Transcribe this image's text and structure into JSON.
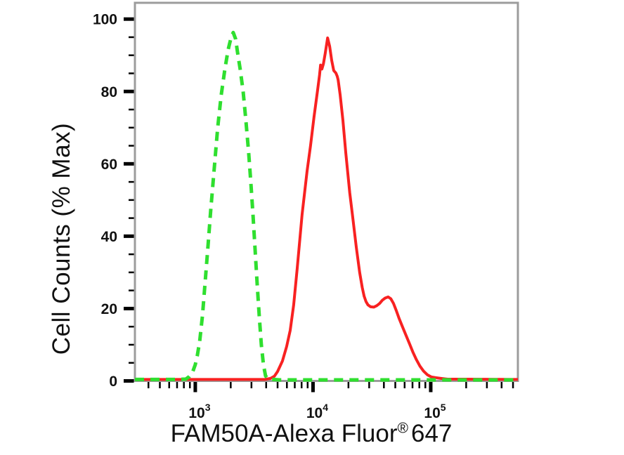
{
  "figure": {
    "background": "#ffffff",
    "frame_color": "#9c9c9c",
    "tick_color": "#000000",
    "text_color": "#111111",
    "ylabel": "Cell Counts (% Max)",
    "xlabel_main": "FAM50A-Alexa Fluor",
    "xlabel_sup": "®",
    "xlabel_suffix": "647"
  },
  "chart_data": {
    "type": "line",
    "title": "",
    "xlabel": "FAM50A-Alexa Fluor® 647",
    "ylabel": "Cell Counts (% Max)",
    "x_scale": "log10",
    "x_range": [
      307,
      550000
    ],
    "y_range": [
      0,
      104.5
    ],
    "grid": "off",
    "legend": "none",
    "x_tick_base": "10",
    "x_ticks_exponents": [
      3,
      4,
      5
    ],
    "y_ticks_major": [
      0,
      20,
      40,
      60,
      80,
      100
    ],
    "y_tick_minor_step": 5,
    "series": [
      {
        "name": "green_dashed",
        "color": "#2fdf2f",
        "style": "dashed",
        "stroke_width": 5,
        "peak": {
          "x": 2100,
          "y": 96
        },
        "points": [
          [
            307,
            0.4
          ],
          [
            700,
            0.4
          ],
          [
            830,
            0.5
          ],
          [
            890,
            1.2
          ],
          [
            950,
            2.5
          ],
          [
            1000,
            4.5
          ],
          [
            1040,
            7
          ],
          [
            1090,
            11
          ],
          [
            1150,
            18
          ],
          [
            1210,
            27
          ],
          [
            1280,
            37
          ],
          [
            1350,
            47
          ],
          [
            1450,
            59
          ],
          [
            1550,
            70
          ],
          [
            1660,
            79
          ],
          [
            1780,
            86
          ],
          [
            1900,
            91.5
          ],
          [
            2010,
            94.8
          ],
          [
            2100,
            96.3
          ],
          [
            2200,
            94.5
          ],
          [
            2280,
            91
          ],
          [
            2410,
            86
          ],
          [
            2550,
            80
          ],
          [
            2690,
            72
          ],
          [
            2840,
            63
          ],
          [
            2960,
            55
          ],
          [
            3090,
            46
          ],
          [
            3210,
            37
          ],
          [
            3350,
            27
          ],
          [
            3490,
            18
          ],
          [
            3640,
            10
          ],
          [
            3790,
            4.5
          ],
          [
            3950,
            1.4
          ],
          [
            4150,
            0.5
          ],
          [
            5200,
            0.3
          ],
          [
            550000,
            0.3
          ]
        ]
      },
      {
        "name": "red_solid",
        "color": "#f82121",
        "style": "solid",
        "stroke_width": 4,
        "peak": {
          "x": 13300,
          "y": 95
        },
        "points": [
          [
            307,
            0.4
          ],
          [
            3900,
            0.4
          ],
          [
            4360,
            0.7
          ],
          [
            4700,
            1.3
          ],
          [
            5000,
            2.6
          ],
          [
            5500,
            5.5
          ],
          [
            5970,
            9.5
          ],
          [
            6400,
            14
          ],
          [
            6850,
            21
          ],
          [
            7340,
            31
          ],
          [
            8080,
            46
          ],
          [
            8900,
            58
          ],
          [
            9530,
            65
          ],
          [
            10200,
            73
          ],
          [
            10900,
            80
          ],
          [
            11350,
            84.5
          ],
          [
            11600,
            87.3
          ],
          [
            11900,
            86.2
          ],
          [
            12250,
            87.6
          ],
          [
            12700,
            90.5
          ],
          [
            13300,
            94.8
          ],
          [
            13850,
            92.5
          ],
          [
            14400,
            88.6
          ],
          [
            15000,
            85.8
          ],
          [
            15650,
            85.1
          ],
          [
            16050,
            84.2
          ],
          [
            16350,
            83.2
          ],
          [
            17000,
            79
          ],
          [
            17950,
            72
          ],
          [
            19000,
            63
          ],
          [
            20500,
            52
          ],
          [
            21800,
            45
          ],
          [
            23300,
            37
          ],
          [
            24900,
            30
          ],
          [
            26200,
            25.8
          ],
          [
            27200,
            23.4
          ],
          [
            28200,
            21.9
          ],
          [
            29300,
            21.0
          ],
          [
            30800,
            20.5
          ],
          [
            32800,
            20.4
          ],
          [
            34800,
            20.8
          ],
          [
            36800,
            21.4
          ],
          [
            38800,
            22.3
          ],
          [
            41000,
            22.9
          ],
          [
            43500,
            23.2
          ],
          [
            45800,
            22.7
          ],
          [
            48300,
            21.4
          ],
          [
            51000,
            19.4
          ],
          [
            54000,
            17.2
          ],
          [
            57500,
            15.0
          ],
          [
            61500,
            12.7
          ],
          [
            66000,
            10.3
          ],
          [
            70500,
            8.0
          ],
          [
            75500,
            5.9
          ],
          [
            81000,
            4.1
          ],
          [
            87000,
            2.7
          ],
          [
            93500,
            1.7
          ],
          [
            101000,
            1.1
          ],
          [
            110000,
            0.9
          ],
          [
            122000,
            0.7
          ],
          [
            138000,
            0.5
          ],
          [
            550000,
            0.4
          ]
        ]
      }
    ]
  }
}
